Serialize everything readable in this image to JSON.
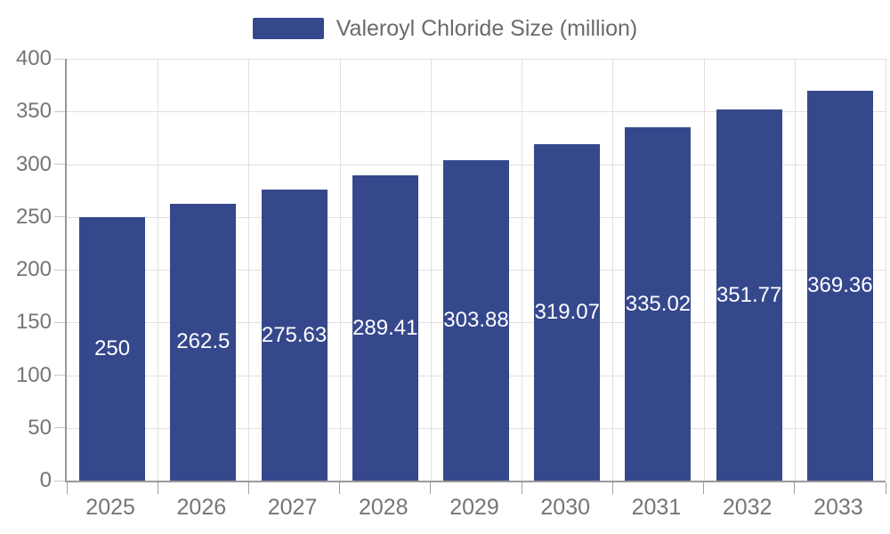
{
  "chart_data": {
    "type": "bar",
    "title": "Valeroyl Chloride Size (million)",
    "categories": [
      "2025",
      "2026",
      "2027",
      "2028",
      "2029",
      "2030",
      "2031",
      "2032",
      "2033"
    ],
    "series": [
      {
        "name": "Valeroyl Chloride Size (million)",
        "values": [
          250,
          262.5,
          275.63,
          289.41,
          303.88,
          319.07,
          335.02,
          351.77,
          369.36
        ]
      }
    ],
    "value_labels": [
      "250",
      "262.5",
      "275.63",
      "289.41",
      "303.88",
      "319.07",
      "335.02",
      "351.77",
      "369.36"
    ],
    "xlabel": "",
    "ylabel": "",
    "ylim": [
      0,
      400
    ],
    "y_ticks": [
      0,
      50,
      100,
      150,
      200,
      250,
      300,
      350,
      400
    ],
    "grid": "horizontal and vertical light gray gridlines",
    "legend_position": "top-center",
    "value_label_position": "centered inside bar, white text"
  },
  "legend": {
    "label": "Valeroyl Chloride Size (million)"
  },
  "colors": {
    "bar": "#36488c",
    "legend_text": "#6b6b6b",
    "axis_line": "#999999",
    "gridline": "#e0e0e0",
    "tick_label": "#757575",
    "bar_label_text": "#ffffff",
    "background": "#ffffff"
  }
}
